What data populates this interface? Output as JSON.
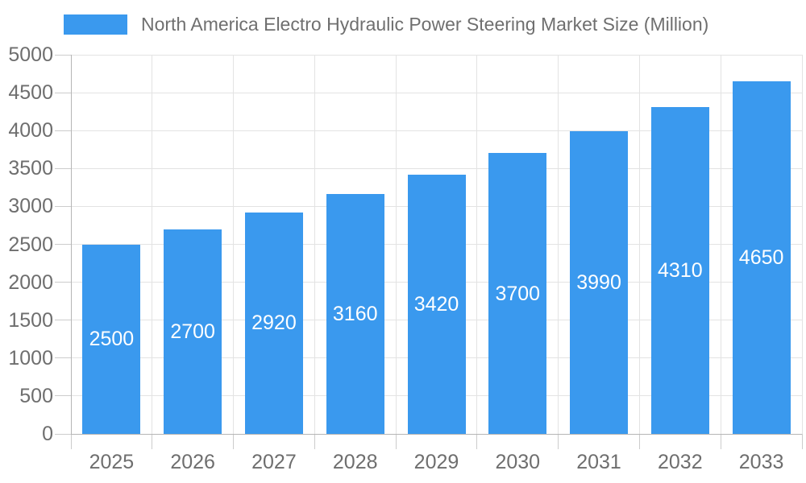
{
  "chart_data": {
    "type": "bar",
    "title": "North America Electro Hydraulic Power Steering Market Size (Million)",
    "categories": [
      "2025",
      "2026",
      "2027",
      "2028",
      "2029",
      "2030",
      "2031",
      "2032",
      "2033"
    ],
    "values": [
      2500,
      2700,
      2920,
      3160,
      3420,
      3700,
      3990,
      4310,
      4650
    ],
    "ylabel": "",
    "xlabel": "",
    "ylim": [
      0,
      5000
    ],
    "ytick_step": 500,
    "ytick_labels": [
      "0",
      "500",
      "1000",
      "1500",
      "2000",
      "2500",
      "3000",
      "3500",
      "4000",
      "4500",
      "5000"
    ],
    "grid": true,
    "legend_position": "top-left",
    "value_labels_inside_bars": true,
    "colors": {
      "bar_fill": "#3a99ee",
      "value_label": "#ffffff",
      "axis_label": "#6e6e6e",
      "title_text": "#6f6f6f",
      "grid_line": "#e3e3e3",
      "axis_line": "#b5b5b5",
      "tick_mark": "#cccccc",
      "background": "#ffffff"
    }
  }
}
